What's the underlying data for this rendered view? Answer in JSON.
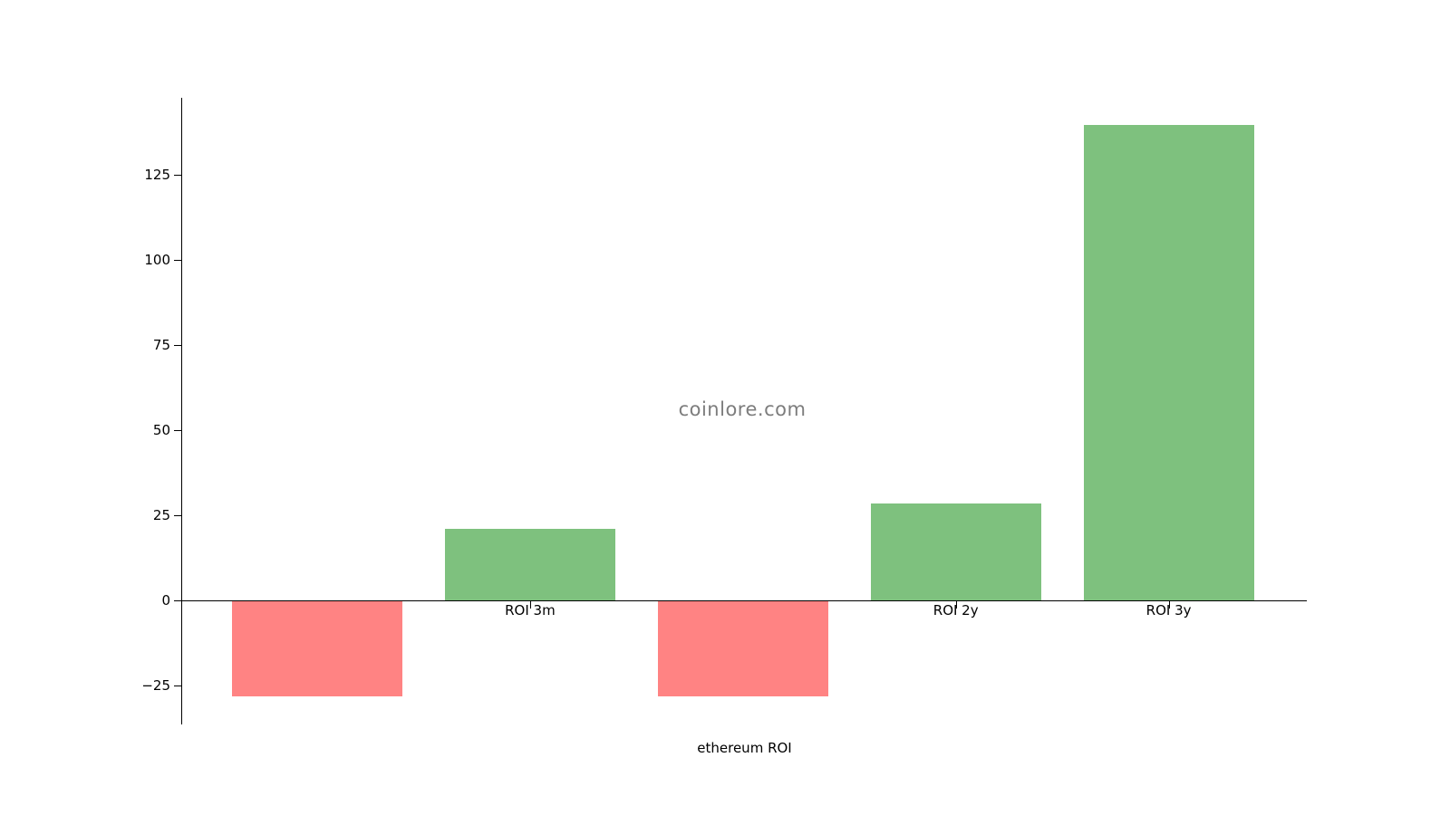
{
  "page": {
    "background": "#ffffff"
  },
  "watermark": {
    "text": "coinlore.com",
    "color": "#7d7d7d"
  },
  "chart_data": {
    "type": "bar",
    "title": "",
    "xlabel": "ethereum ROI",
    "ylabel": "",
    "categories": [
      "",
      "ROI 3m",
      "",
      "ROI 2y",
      "ROI 3y"
    ],
    "values": [
      -28.1,
      21.0,
      -28.1,
      28.5,
      139.6
    ],
    "series": [
      {
        "name": "ethereum ROI",
        "values": [
          -28.1,
          21.0,
          -28.1,
          28.5,
          139.6
        ]
      }
    ],
    "bar_colors": {
      "positive": "#7ec17e",
      "negative": "#ff8383"
    },
    "y_ticks": [
      {
        "value": 125,
        "label": "125"
      },
      {
        "value": 100,
        "label": "100"
      },
      {
        "value": 75,
        "label": "75"
      },
      {
        "value": 50,
        "label": "50"
      },
      {
        "value": 25,
        "label": "25"
      },
      {
        "value": 0,
        "label": "0"
      },
      {
        "value": -25,
        "label": "−25"
      }
    ],
    "ylim": [
      -36.5,
      147.6
    ],
    "grid": false,
    "legend": null,
    "axis_color": "#000000",
    "text_color": "#000000"
  }
}
